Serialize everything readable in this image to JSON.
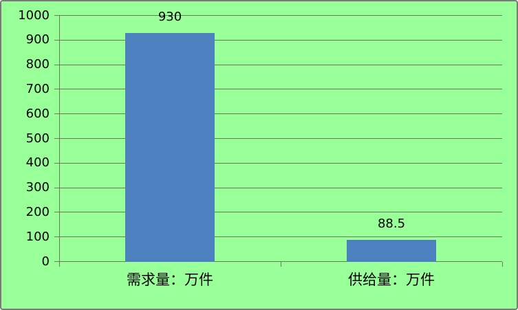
{
  "chart_data": {
    "type": "bar",
    "categories": [
      "需求量：万件",
      "供给量：万件"
    ],
    "values": [
      930,
      88.5
    ],
    "value_labels": [
      "930",
      "88.5"
    ],
    "yticks": [
      0,
      100,
      200,
      300,
      400,
      500,
      600,
      700,
      800,
      900,
      1000
    ],
    "ytick_labels": [
      "0",
      "100",
      "200",
      "300",
      "400",
      "500",
      "600",
      "700",
      "800",
      "900",
      "1000"
    ],
    "ylim": [
      0,
      1000
    ],
    "grid": true,
    "legend_position": "none",
    "title": "",
    "xlabel": "",
    "ylabel": "",
    "colors": {
      "background": "#99FF99",
      "bar": "#4D80BE",
      "gridline": "#6F7A58",
      "axis": "#6F7A58",
      "frame_border": "#7A7A7A",
      "text": "#000000"
    }
  }
}
